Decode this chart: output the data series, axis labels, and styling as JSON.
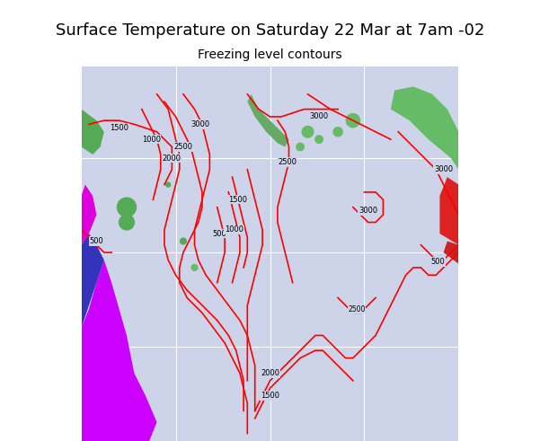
{
  "title": "Surface Temperature on Saturday 22 Mar at 7am -02",
  "subtitle": "Freezing level contours",
  "title_fontsize": 13,
  "subtitle_fontsize": 10,
  "bg_color": "#e8eaf0",
  "map_bg": "#cdd3e8",
  "land_colors": {
    "green": "#5aaa5a",
    "blue": "#4444cc",
    "purple": "#cc00cc",
    "magenta": "#ff00ff",
    "dark_blue": "#2200aa"
  },
  "contour_color": "#ff0000",
  "contour_linewidth": 1.2,
  "grid_color": "#ffffff",
  "grid_linewidth": 0.8
}
